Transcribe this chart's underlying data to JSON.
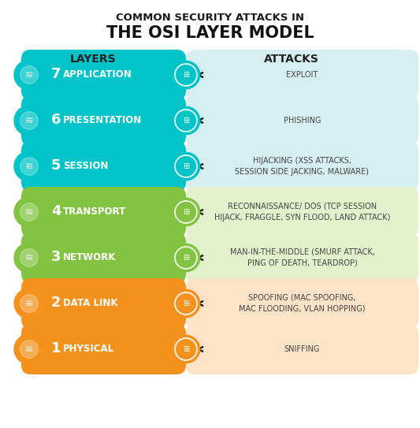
{
  "title_line1": "COMMON SECURITY ATTACKS IN",
  "title_line2": "THE OSI LAYER MODEL",
  "col_header_left": "LAYERS",
  "col_header_right": "ATTACKS",
  "background_color": "#FFFFFF",
  "layers": [
    {
      "number": "7",
      "name": "APPLICATION",
      "attack": "EXPLOIT",
      "layer_color": "#00C4C7",
      "attack_bg": "#D6EFF2",
      "icon_bg": "#00C4C7"
    },
    {
      "number": "6",
      "name": "PRESENTATION",
      "attack": "PHISHING",
      "layer_color": "#00C4C7",
      "attack_bg": "#D6EFF2",
      "icon_bg": "#00C4C7"
    },
    {
      "number": "5",
      "name": "SESSION",
      "attack": "HIJACKING (XSS ATTACKS,\nSESSION SIDE JACKING, MALWARE)",
      "layer_color": "#00C4C7",
      "attack_bg": "#D6EFF2",
      "icon_bg": "#00C4C7"
    },
    {
      "number": "4",
      "name": "TRANSPORT",
      "attack": "RECONNAISSANCE/ DOS (TCP SESSION\nHIJACK, FRAGGLE, SYN FLOOD, LAND ATTACK)",
      "layer_color": "#82C341",
      "attack_bg": "#E2F2CC",
      "icon_bg": "#82C341"
    },
    {
      "number": "3",
      "name": "NETWORK",
      "attack": "MAN-IN-THE-MIDDLE (SMURF ATTACK,\nPING OF DEATH, TEARDROP)",
      "layer_color": "#82C341",
      "attack_bg": "#E2F2CC",
      "icon_bg": "#82C341"
    },
    {
      "number": "2",
      "name": "DATA LINK",
      "attack": "SPOOFING (MAC SPOOFING,\nMAC FLOODING, VLAN HOPPING)",
      "layer_color": "#F5921E",
      "attack_bg": "#FDE4C8",
      "icon_bg": "#F5921E"
    },
    {
      "number": "1",
      "name": "PHYSICAL",
      "attack": "SNIFFING",
      "layer_color": "#F5921E",
      "attack_bg": "#FDE4C8",
      "icon_bg": "#F5921E"
    }
  ]
}
